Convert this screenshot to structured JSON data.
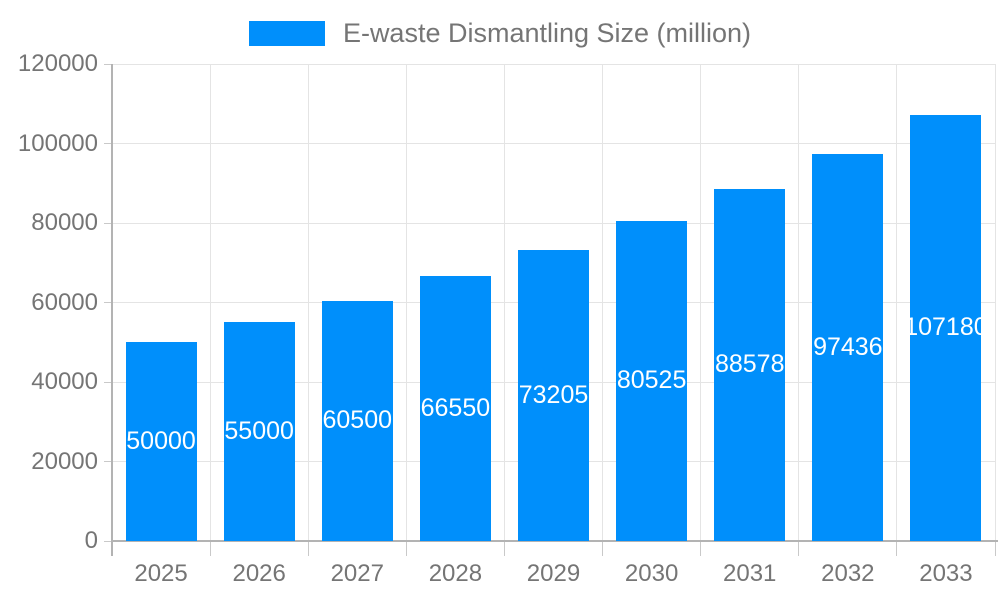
{
  "chart_data": {
    "type": "bar",
    "title": "E-waste Dismantling Size (million)",
    "legend": {
      "position": "top",
      "label": "E-waste Dismantling Size (million)"
    },
    "categories": [
      "2025",
      "2026",
      "2027",
      "2028",
      "2029",
      "2030",
      "2031",
      "2032",
      "2033"
    ],
    "values": [
      50000,
      55000,
      60500,
      66550,
      73205,
      80525,
      88578,
      97436,
      107180
    ],
    "value_labels": [
      "50000",
      "55000",
      "60500",
      "66550",
      "73205",
      "80525",
      "88578",
      "97436",
      "107180"
    ],
    "xlabel": "",
    "ylabel": "",
    "ylim": [
      0,
      120000
    ],
    "yticks": [
      0,
      20000,
      40000,
      60000,
      80000,
      100000,
      120000
    ],
    "ytick_labels": [
      "0",
      "20000",
      "40000",
      "60000",
      "80000",
      "100000",
      "120000"
    ],
    "grid": true,
    "colors": {
      "bar": "#008FFB",
      "value_label": "#FFFFFF",
      "axis_text": "#757575",
      "legend_text": "#757575",
      "gridline": "#E4E4E4",
      "axis_line": "#B3B3B3",
      "tick": "#C9C9C9",
      "background": "#FFFFFF"
    }
  }
}
